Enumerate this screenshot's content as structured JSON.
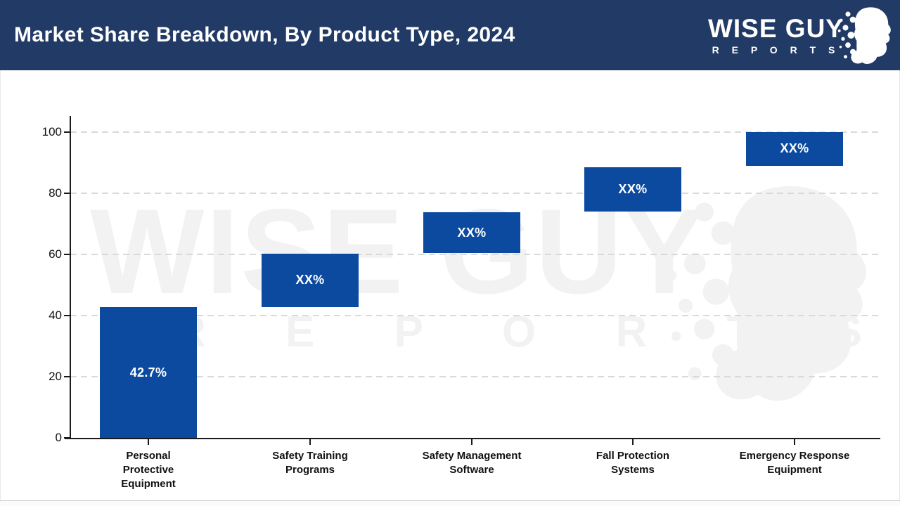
{
  "header": {
    "title": "Market Share Breakdown, By Product Type, 2024",
    "logo": {
      "line1": "WISE GUY",
      "line2": "R E P O R T S",
      "icon": "dotted-face-profile-icon"
    }
  },
  "watermark": {
    "line1": "WISE GUY",
    "line2": "R E P O R T S",
    "icon": "dotted-face-profile-watermark"
  },
  "chart_data": {
    "type": "bar",
    "subtype": "floating-segment-waterfall",
    "title": "Market Share Breakdown, By Product Type, 2024",
    "categories": [
      "Personal\nProtective\nEquipment",
      "Safety Training\nPrograms",
      "Safety Management\nSoftware",
      "Fall Protection\nSystems",
      "Emergency Response\nEquipment"
    ],
    "segments": [
      {
        "category": "Personal Protective Equipment",
        "start": 0,
        "end": 42.7,
        "label": "42.7%"
      },
      {
        "category": "Safety Training Programs",
        "start": 42.7,
        "end": 60.3,
        "label": "XX%"
      },
      {
        "category": "Safety Management Software",
        "start": 60.5,
        "end": 73.7,
        "label": "XX%"
      },
      {
        "category": "Fall Protection Systems",
        "start": 74.0,
        "end": 88.6,
        "label": "XX%"
      },
      {
        "category": "Emergency Response Equipment",
        "start": 89.0,
        "end": 100.0,
        "label": "XX%"
      }
    ],
    "yticks": [
      0,
      20,
      40,
      60,
      80,
      100
    ],
    "ylim": [
      0,
      105
    ],
    "xlabel": "",
    "ylabel": "",
    "grid": "horizontal-dashed",
    "legend": "none",
    "bar_color": "#0c4aa0",
    "bar_label_color": "#ffffff"
  },
  "colors": {
    "header_bg": "#213a66",
    "bar": "#0c4aa0",
    "grid": "#d9d9d9",
    "axis": "#1a1a1a",
    "watermark": "#f2f2f2",
    "title_text": "#ffffff"
  }
}
